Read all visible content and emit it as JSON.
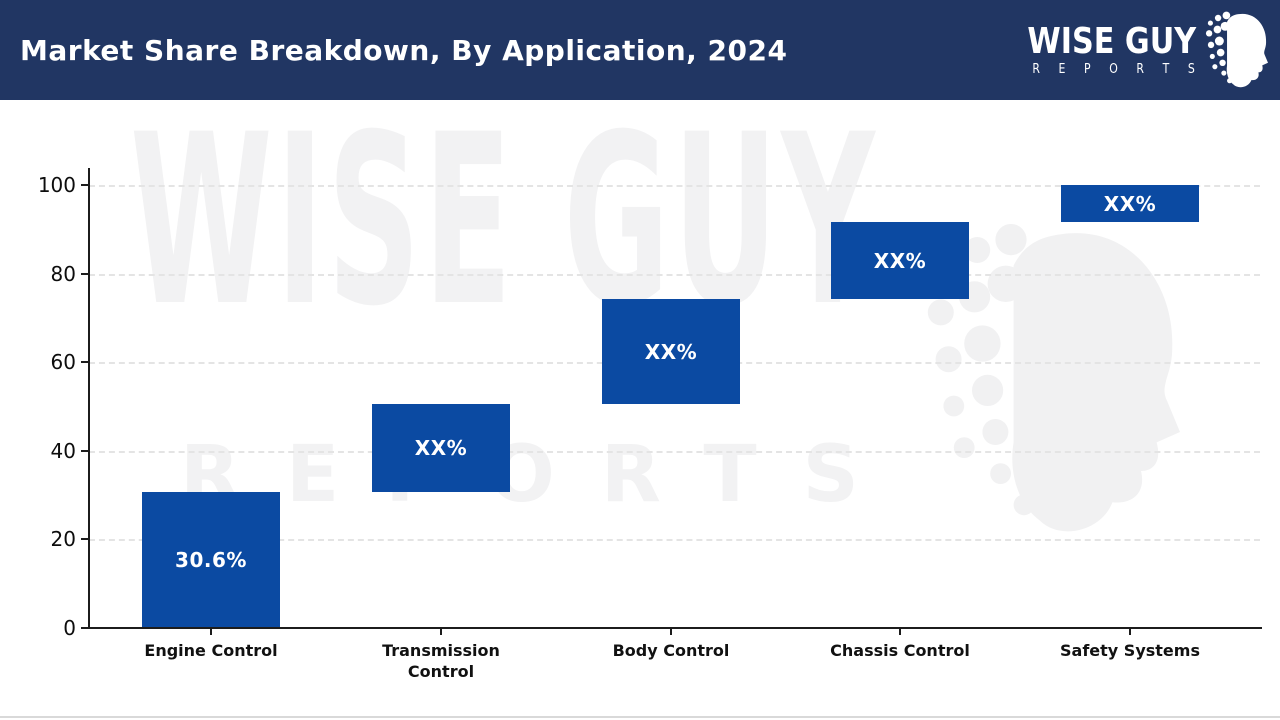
{
  "header": {
    "title": "Market Share Breakdown, By Application, 2024",
    "logo": {
      "line1": "WISE GUY",
      "line2": "R E P O R T S"
    }
  },
  "watermark": {
    "line1": "WISE GUY",
    "line2": "REPORTS"
  },
  "chart_data": {
    "type": "bar",
    "subtype": "waterfall",
    "title": "Market Share Breakdown, By Application, 2024",
    "categories": [
      "Engine Control",
      "Transmission\nControl",
      "Body Control",
      "Chassis Control",
      "Safety Systems"
    ],
    "segments": [
      {
        "category": "Engine Control",
        "start": 0,
        "end": 30.6,
        "label": "30.6%"
      },
      {
        "category": "Transmission Control",
        "start": 30.6,
        "end": 50.5,
        "label": "XX%"
      },
      {
        "category": "Body Control",
        "start": 50.5,
        "end": 74.2,
        "label": "XX%"
      },
      {
        "category": "Chassis Control",
        "start": 74.2,
        "end": 91.6,
        "label": "XX%"
      },
      {
        "category": "Safety Systems",
        "start": 91.6,
        "end": 100,
        "label": "XX%"
      }
    ],
    "yticks": [
      0,
      20,
      40,
      60,
      80,
      100
    ],
    "ylim": [
      0,
      100
    ],
    "xlabel": "",
    "ylabel": "",
    "legend": "none",
    "grid": "horizontal-dashed",
    "bar_color": "#0b4aa2"
  },
  "colors": {
    "header_bg": "#213663",
    "bar": "#0b4aa2",
    "gridline": "#e4e4e4",
    "watermark": "#f2f2f3",
    "footer_line": "#d9d9d9"
  }
}
